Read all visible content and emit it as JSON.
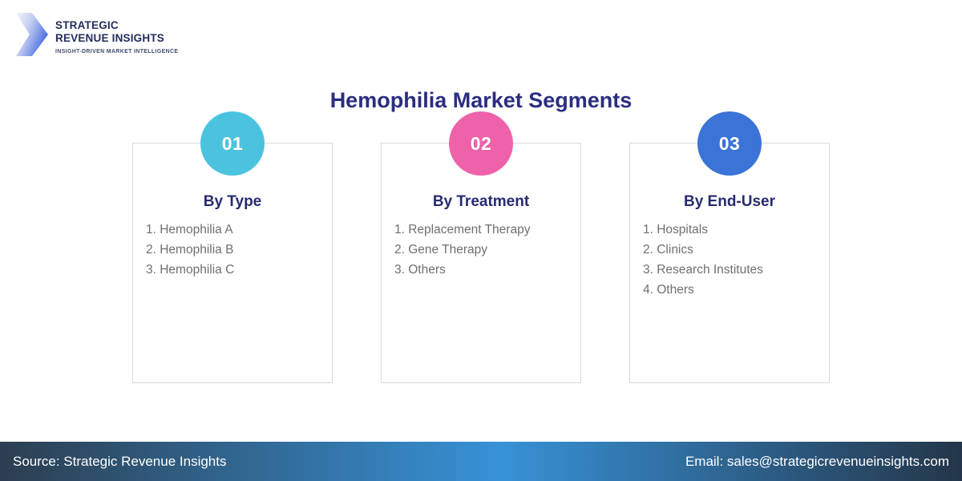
{
  "logo": {
    "name_line1": "STRATEGIC",
    "name_line2": "REVENUE INSIGHTS",
    "tagline": "INSIGHT-DRIVEN MARKET INTELLIGENCE"
  },
  "title": "Hemophilia Market Segments",
  "cards": [
    {
      "number": "01",
      "circle_color": "#4cc3de",
      "heading": "By Type",
      "items": [
        "1. Hemophilia A",
        "2. Hemophilia B",
        "3. Hemophilia C"
      ]
    },
    {
      "number": "02",
      "circle_color": "#ee62aa",
      "heading": "By Treatment",
      "items": [
        "1. Replacement Therapy",
        "2. Gene Therapy",
        "3. Others"
      ]
    },
    {
      "number": "03",
      "circle_color": "#3b73d6",
      "heading": "By End-User",
      "items": [
        "1. Hospitals",
        "2. Clinics",
        "3. Research Institutes",
        "4. Others"
      ]
    }
  ],
  "footer": {
    "source": "Source: Strategic Revenue Insights",
    "email": "Email: sales@strategicrevenueinsights.com"
  },
  "colors": {
    "title_text": "#2b2d80",
    "card_heading_text": "#272b6f",
    "list_text": "#6f6f6f",
    "card_border": "#d9d9d9",
    "footer_gradient_left": "#2c3e50",
    "footer_gradient_mid": "#3792d7",
    "footer_gradient_right": "#243649"
  }
}
